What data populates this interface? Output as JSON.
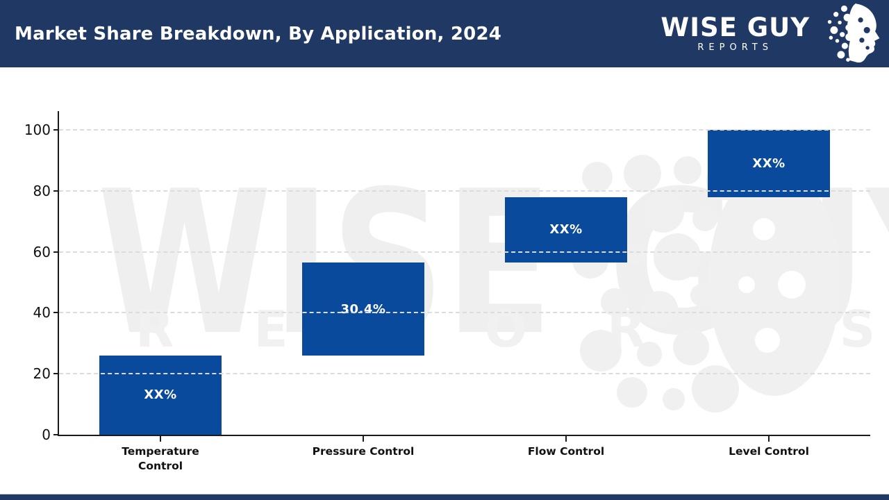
{
  "header": {
    "title": "Market Share Breakdown, By Application, 2024",
    "logo_line1": "WISE GUY",
    "logo_line2": "REPORTS"
  },
  "watermark": {
    "line1": "WISE GUY",
    "line2": "R E P O R T S"
  },
  "colors": {
    "header_bg": "#1f3864",
    "footer_bg": "#1f3864",
    "bar": "#0a4a9c",
    "grid": "#dcdcdc",
    "axis": "#1a1a1a",
    "bar_label_text": "#ffffff",
    "watermark": "#efefef"
  },
  "chart_data": {
    "type": "bar",
    "variant": "floating-segment waterfall (segments stack to 100%)",
    "title": "Market Share Breakdown, By Application, 2024",
    "categories": [
      "Temperature Control",
      "Pressure Control",
      "Flow Control",
      "Level Control"
    ],
    "category_lines": [
      [
        "Temperature",
        "Control"
      ],
      [
        "Pressure Control"
      ],
      [
        "Flow Control"
      ],
      [
        "Level Control"
      ]
    ],
    "series": [
      {
        "name": "Market share (%)",
        "ranges": [
          [
            0,
            26
          ],
          [
            26,
            56.4
          ],
          [
            56.4,
            78
          ],
          [
            78,
            100
          ]
        ],
        "bar_labels": [
          "XX%",
          "30.4%",
          "XX%",
          "XX%"
        ]
      }
    ],
    "xlabel": "",
    "ylabel": "",
    "ylim": [
      0,
      100
    ],
    "yticks": [
      0,
      20,
      40,
      60,
      80,
      100
    ],
    "grid": "horizontal dashed",
    "legend": "none"
  }
}
